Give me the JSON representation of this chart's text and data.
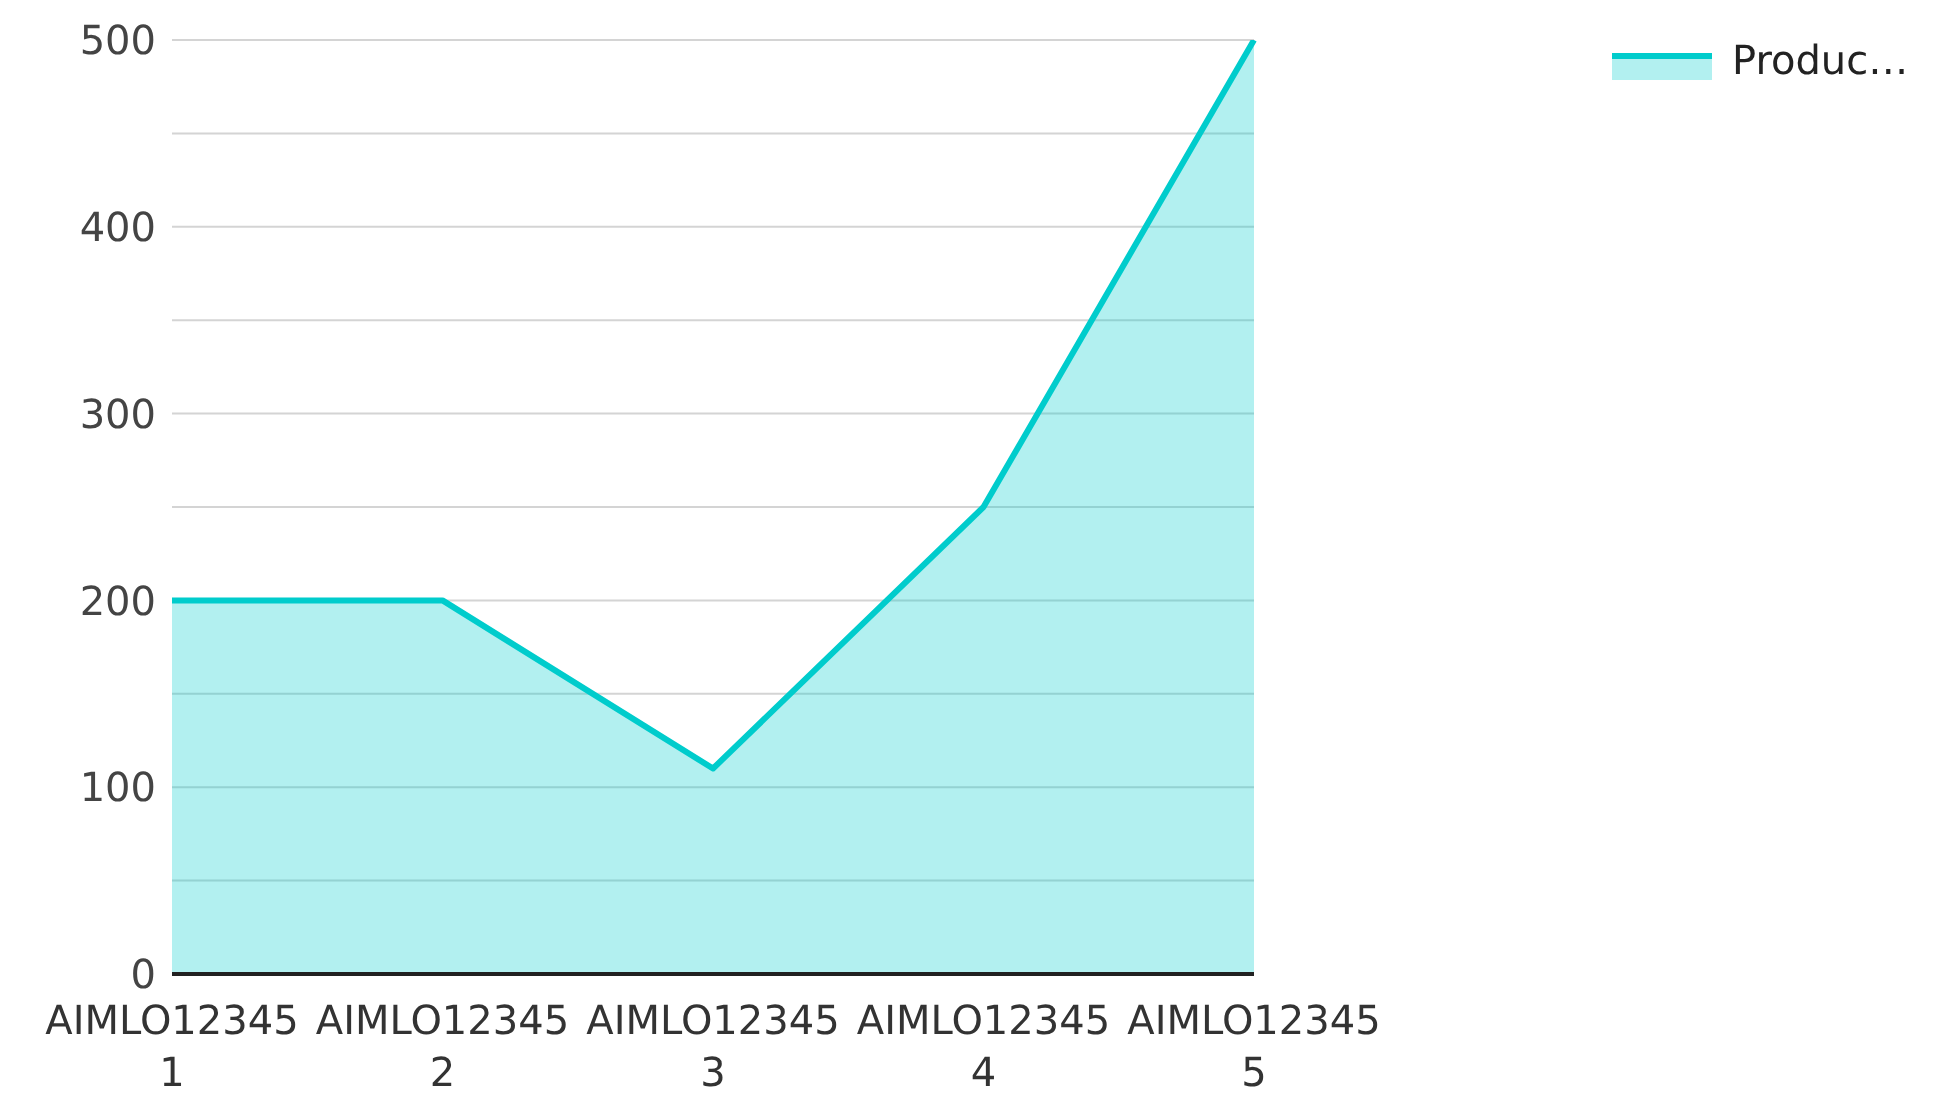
{
  "chart_data": {
    "type": "area",
    "categories": [
      "AIMLO123451",
      "AIMLO123452",
      "AIMLO123453",
      "AIMLO123454",
      "AIMLO123455"
    ],
    "series": [
      {
        "name": "Produc…",
        "color": "#00cccc",
        "values": [
          200,
          200,
          110,
          250,
          500
        ]
      }
    ],
    "ylim": [
      0,
      500
    ],
    "yticks": [
      0,
      {
        "value": 50,
        "label": null
      },
      100,
      {
        "value": 150,
        "label": null
      },
      200,
      {
        "value": 250,
        "label": null
      },
      300,
      {
        "value": 350,
        "label": null
      },
      400,
      {
        "value": 450,
        "label": null
      },
      500
    ],
    "grid": "y",
    "legend": "top right",
    "marker": "none",
    "line_style": "solid"
  }
}
